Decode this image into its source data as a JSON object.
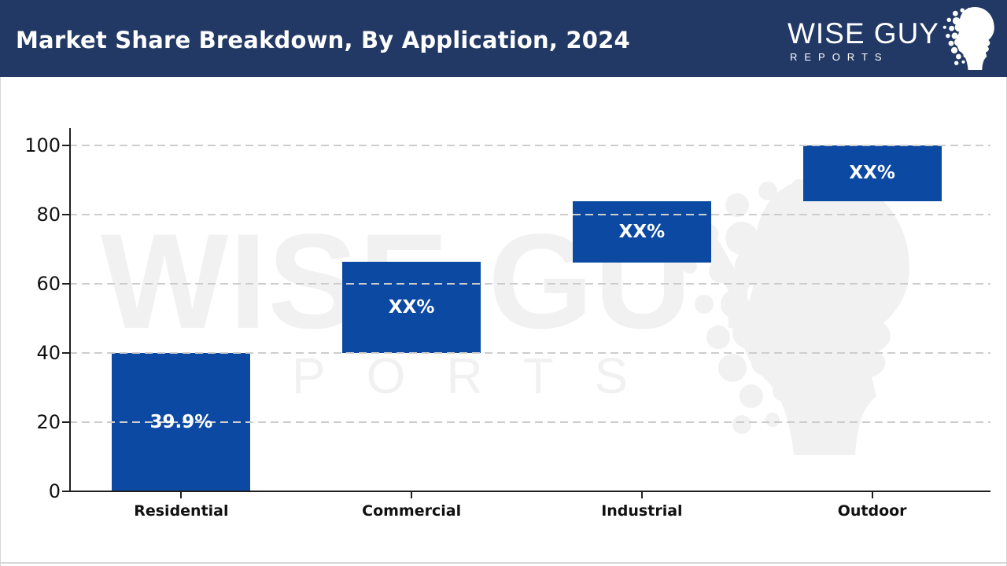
{
  "header": {
    "title": "Market Share Breakdown, By Application, 2024",
    "logo": {
      "wordmark": "WISE GUY",
      "subtext": "REPORTS"
    }
  },
  "watermark": {
    "wordmark": "WISE GUY",
    "subtext": "REPORTS"
  },
  "colors": {
    "header_bg": "#223965",
    "header_text": "#FFFFFF",
    "background": "#FFFFFF",
    "bar": "#0C49A3",
    "bar_label": "#FFFFFF",
    "axis": "#1F1F1F",
    "tick_label": "#111111",
    "gridline": "#CDCDCD",
    "watermark": "#F1F1F1",
    "border": "#D6D6D6"
  },
  "chart_data": {
    "type": "bar",
    "subtype": "waterfall",
    "title": "Market Share Breakdown, By Application, 2024",
    "categories": [
      "Residential",
      "Commercial",
      "Industrial",
      "Outdoor"
    ],
    "segments": [
      {
        "category": "Residential",
        "start": 0,
        "end": 39.9,
        "label": "39.9%"
      },
      {
        "category": "Commercial",
        "start": 40,
        "end": 66.4,
        "label": "XX%"
      },
      {
        "category": "Industrial",
        "start": 66.2,
        "end": 83.9,
        "label": "XX%"
      },
      {
        "category": "Outdoor",
        "start": 83.9,
        "end": 100,
        "label": "XX%"
      }
    ],
    "value_unit": "percent",
    "ylim": [
      0,
      105
    ],
    "yticks": [
      0,
      20,
      40,
      60,
      80,
      100
    ],
    "xlabel": "",
    "ylabel": "",
    "grid": "horizontal-dashed",
    "legend": false
  }
}
